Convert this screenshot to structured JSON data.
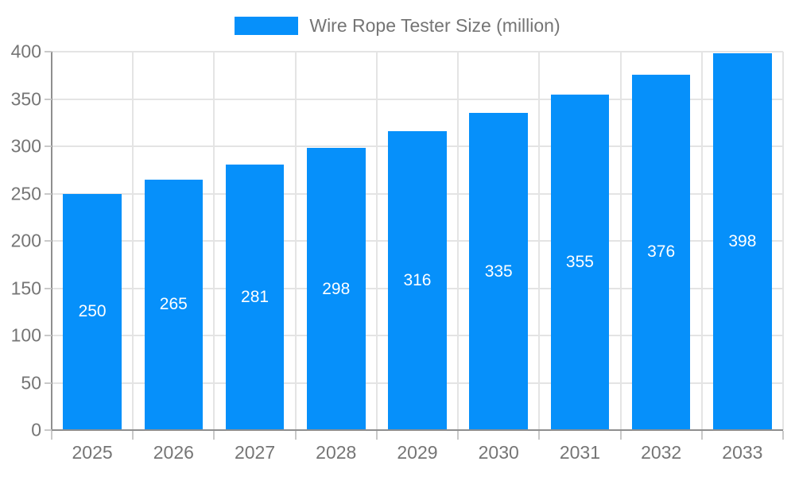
{
  "legend": {
    "label": "Wire Rope Tester Size (million)"
  },
  "colors": {
    "bar": "#0690fa",
    "axis": "#8f8f8f",
    "grid": "#e4e4e4",
    "tick": "#c9c9c9",
    "label": "#757575",
    "value_label": "#ffffff",
    "background": "#ffffff"
  },
  "chart_data": {
    "type": "bar",
    "title": "Wire Rope Tester Size (million)",
    "categories": [
      "2025",
      "2026",
      "2027",
      "2028",
      "2029",
      "2030",
      "2031",
      "2032",
      "2033"
    ],
    "values": [
      250,
      265,
      281,
      298,
      316,
      335,
      355,
      376,
      398
    ],
    "xlabel": "",
    "ylabel": "",
    "ylim": [
      0,
      400
    ],
    "ytick_step": 50,
    "ytick_labels": [
      "0",
      "50",
      "100",
      "150",
      "200",
      "250",
      "300",
      "350",
      "400"
    ],
    "grid": true,
    "legend_position": "top-center",
    "value_labels": "inside-middle-white",
    "bar_width_fraction": 0.72
  }
}
